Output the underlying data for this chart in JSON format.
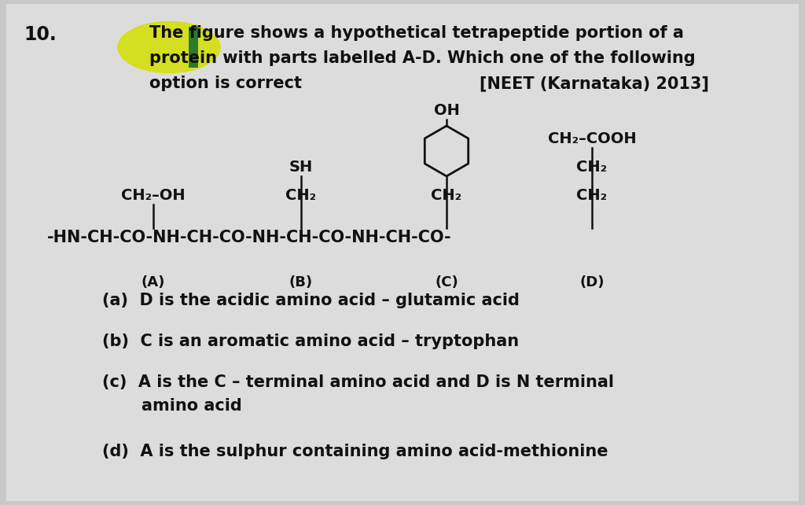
{
  "bg_color": "#c8c8c8",
  "paper_color": "#e8e8e8",
  "text_color": "#111111",
  "highlight_yellow": "#d4e000",
  "highlight_green": "#2d7a2d",
  "question_number": "10.",
  "line1": "The figure shows a hypothetical tetrapeptide portion of a",
  "line2": "protein with parts labelled A-D. Which one of the following",
  "line3": "option is correct",
  "neet_ref": "[NEET (Karnataka) 2013]",
  "backbone": "-HN-CH-CO-NH-CH-CO-NH-CH-CO-NH-CH-CO-",
  "labels": [
    "(A)",
    "(B)",
    "(C)",
    "(D)"
  ],
  "opt_a": "(a)  D is the acidic amino acid – glutamic acid",
  "opt_b": "(b)  C is an aromatic amino acid – tryptophan",
  "opt_c1": "(c)  A is the C – terminal amino acid and D is N terminal",
  "opt_c2": "      amino acid",
  "opt_d": "(d)  A is the sulphur containing amino acid-methionine",
  "font_size_main": 15,
  "font_size_chem": 14,
  "font_size_label": 13
}
